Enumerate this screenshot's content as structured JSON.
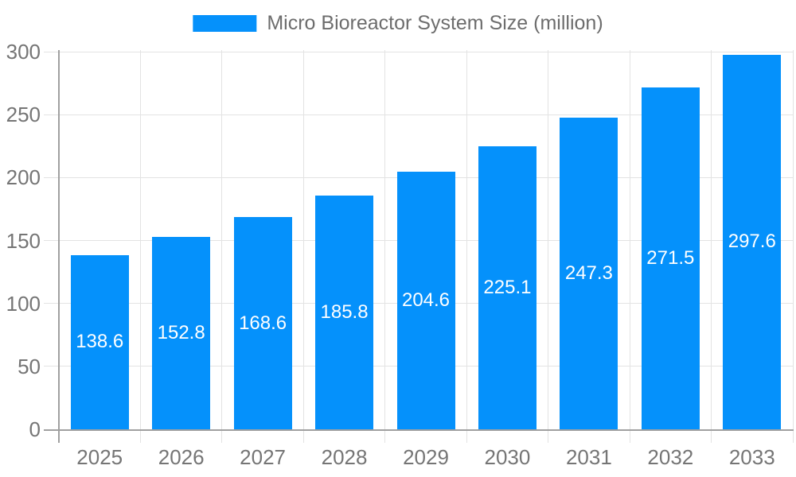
{
  "legend": {
    "label": "Micro Bioreactor System Size (million)"
  },
  "colors": {
    "bar": "#0591fb",
    "grid": "#e3e3e3",
    "axis": "#a0a0a0",
    "tick_text": "#757575",
    "legend_text": "#6d6d6d",
    "bar_label_text": "#ffffff",
    "background": "#ffffff"
  },
  "chart_data": {
    "type": "bar",
    "title": "Micro Bioreactor System Size (million)",
    "series_name": "Micro Bioreactor System Size (million)",
    "categories": [
      "2025",
      "2026",
      "2027",
      "2028",
      "2029",
      "2030",
      "2031",
      "2032",
      "2033"
    ],
    "values": [
      138.6,
      152.8,
      168.6,
      185.8,
      204.6,
      225.1,
      247.3,
      271.5,
      297.6
    ],
    "value_labels": "inside-center-white",
    "xlabel": "",
    "ylabel": "",
    "ylim": [
      0,
      300
    ],
    "yticks": [
      0,
      50,
      100,
      150,
      200,
      250,
      300
    ],
    "grid": "on",
    "legend_position": "top-center"
  }
}
